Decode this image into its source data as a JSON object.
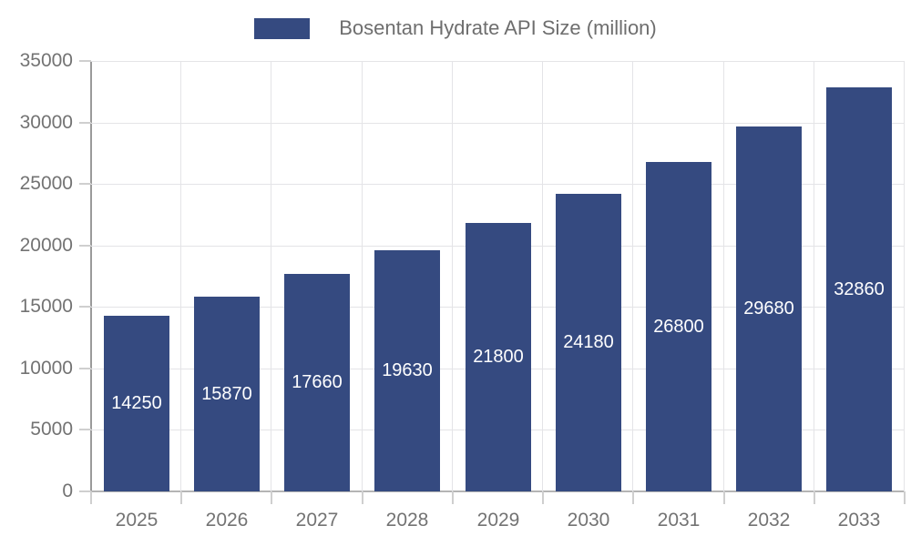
{
  "chart_data": {
    "type": "bar",
    "title": "Bosentan Hydrate API Size (million)",
    "categories": [
      "2025",
      "2026",
      "2027",
      "2028",
      "2029",
      "2030",
      "2031",
      "2032",
      "2033"
    ],
    "values": [
      14250,
      15870,
      17660,
      19630,
      21800,
      24180,
      26800,
      29680,
      32860
    ],
    "xlabel": "",
    "ylabel": "",
    "ylim": [
      0,
      35000
    ],
    "yticks": [
      0,
      5000,
      10000,
      15000,
      20000,
      25000,
      30000,
      35000
    ],
    "grid": true,
    "legend_position": "top-center",
    "bar_labels_visible": true
  },
  "legend": {
    "label": "Bosentan Hydrate API Size (million)"
  },
  "colors": {
    "bar": "#354a80",
    "axis_text": "#737373",
    "legend_text": "#6e6e6e",
    "gridline": "#e4e4e7",
    "axis_line": "#9a9a9a",
    "baseline": "#b4b4b4",
    "tick": "#cfcfcf",
    "bar_label": "#ffffff",
    "background": "#ffffff"
  }
}
